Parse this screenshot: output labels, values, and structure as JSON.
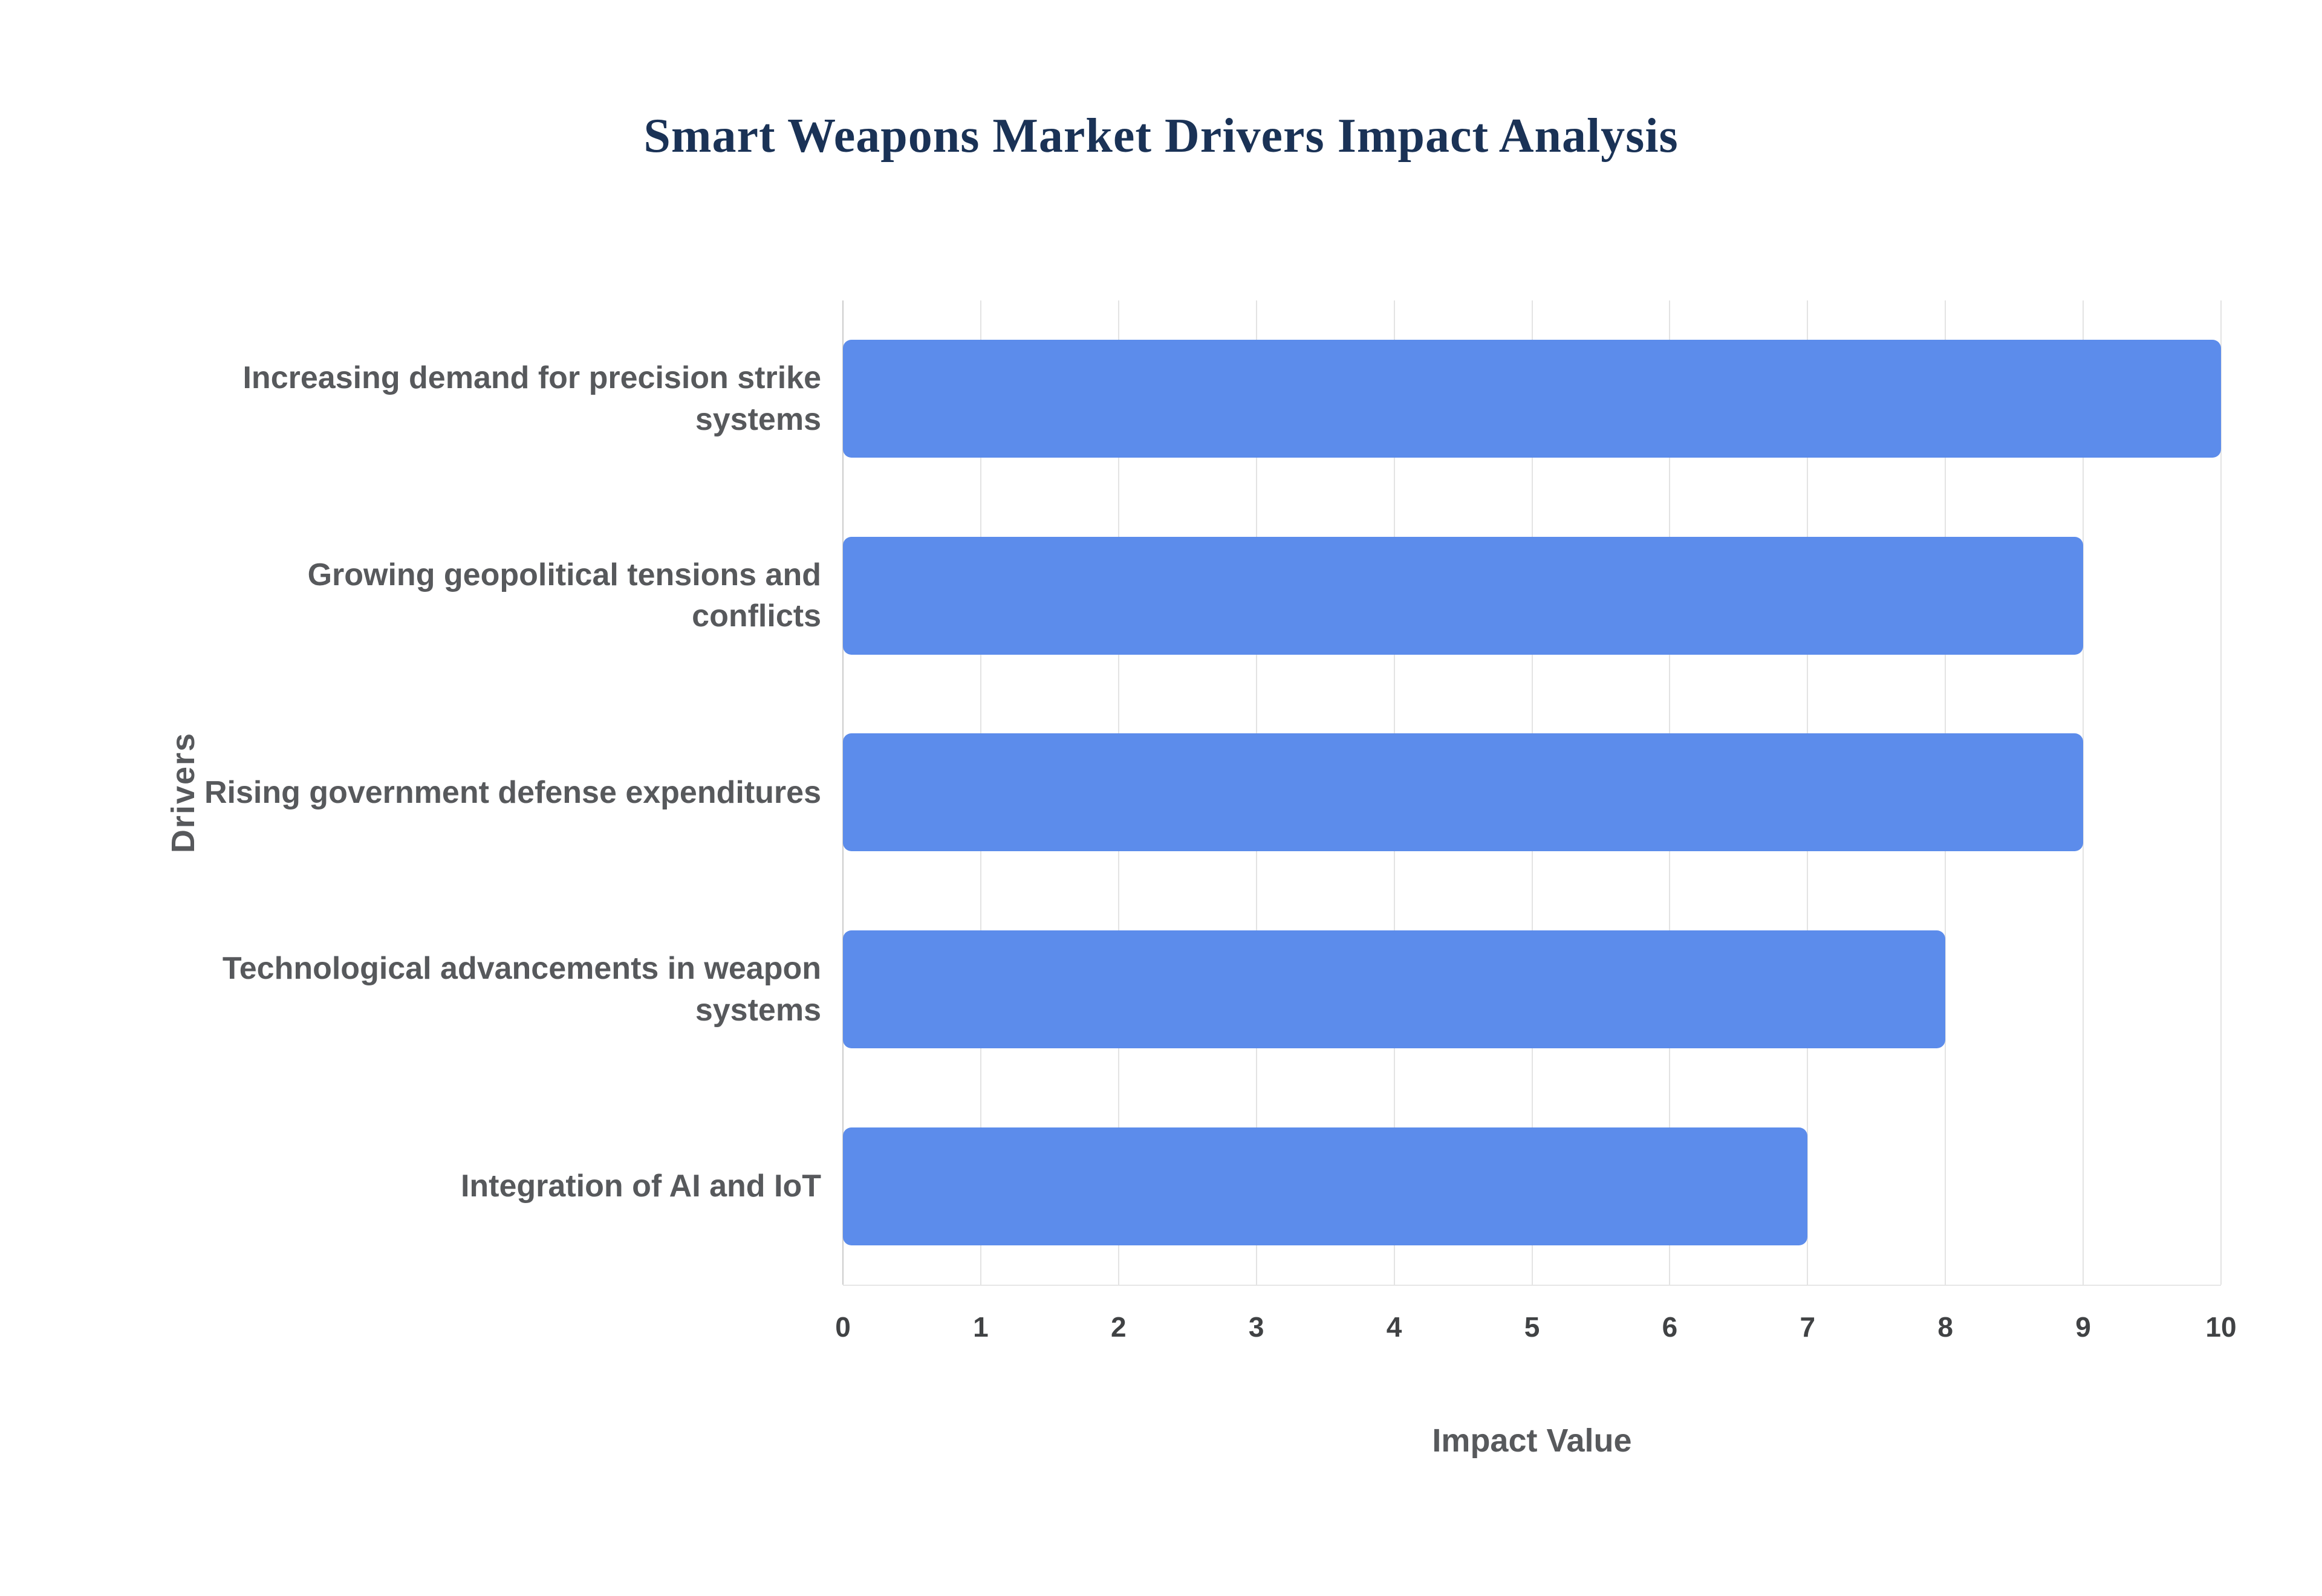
{
  "title": "Smart Weapons Market Drivers Impact Analysis",
  "chart_data": {
    "type": "bar",
    "orientation": "horizontal",
    "title": "Smart Weapons Market Drivers Impact Analysis",
    "categories": [
      "Increasing demand for precision strike systems",
      "Growing geopolitical tensions and conflicts",
      "Rising government defense expenditures",
      "Technological advancements in weapon systems",
      "Integration of AI and IoT"
    ],
    "values": [
      10,
      9,
      9,
      8,
      7
    ],
    "xlabel": "Impact Value",
    "ylabel": "Drivers",
    "xlim": [
      0,
      10
    ],
    "xticks": [
      0,
      1,
      2,
      3,
      4,
      5,
      6,
      7,
      8,
      9,
      10
    ],
    "grid": true,
    "legend": "none",
    "bar_color": "#5c8ceb",
    "gridline_color": "#e3e3e3",
    "title_color": "#1a3256",
    "label_color": "#57595c",
    "tick_color": "#404244"
  }
}
